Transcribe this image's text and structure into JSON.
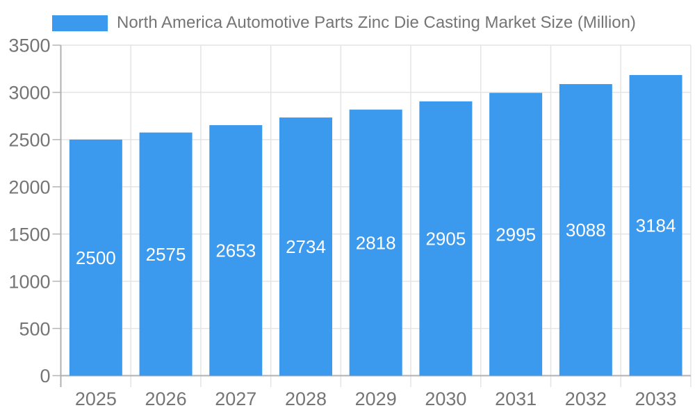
{
  "legend": {
    "label": "North America Automotive Parts Zinc Die Casting Market Size (Million)"
  },
  "colors": {
    "bar": "#3b99ee",
    "axis_line": "#b0b0b0",
    "grid_line": "#e4e4e4",
    "tick": "#b4b4b4",
    "axis_text": "#757575",
    "value_label": "#ffffff",
    "background": "#ffffff"
  },
  "chart_data": {
    "type": "bar",
    "title": "North America Automotive Parts Zinc Die Casting Market Size (Million)",
    "categories": [
      "2025",
      "2026",
      "2027",
      "2028",
      "2029",
      "2030",
      "2031",
      "2032",
      "2033"
    ],
    "series": [
      {
        "name": "North America Automotive Parts Zinc Die Casting Market Size (Million)",
        "values": [
          2500,
          2575,
          2653,
          2734,
          2818,
          2905,
          2995,
          3088,
          3184
        ]
      }
    ],
    "value_labels": [
      "2500",
      "2575",
      "2653",
      "2734",
      "2818",
      "2905",
      "2995",
      "3088",
      "3184"
    ],
    "xlabel": "",
    "ylabel": "",
    "ylim": [
      0,
      3500
    ],
    "yticks": [
      0,
      500,
      1000,
      1500,
      2000,
      2500,
      3000,
      3500
    ],
    "grid": true,
    "legend_position": "top-left",
    "value_label_position": "inside-middle"
  }
}
